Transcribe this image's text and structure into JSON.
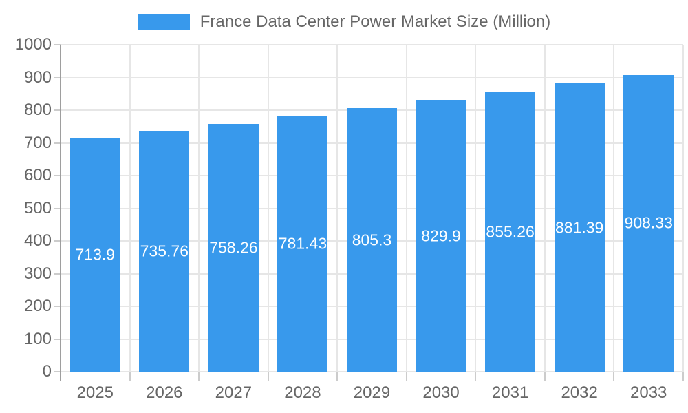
{
  "legend": {
    "label": "France Data Center Power Market Size (Million)"
  },
  "chart_data": {
    "type": "bar",
    "title": "France Data Center Power Market Size (Million)",
    "series_name": "France Data Center Power Market Size (Million)",
    "categories": [
      "2025",
      "2026",
      "2027",
      "2028",
      "2029",
      "2030",
      "2031",
      "2032",
      "2033"
    ],
    "values": [
      713.9,
      735.76,
      758.26,
      781.43,
      805.3,
      829.9,
      855.26,
      881.39,
      908.33
    ],
    "value_labels": [
      "713.9",
      "735.76",
      "758.26",
      "781.43",
      "805.3",
      "829.9",
      "855.26",
      "881.39",
      "908.33"
    ],
    "xlabel": "",
    "ylabel": "",
    "ylim": [
      0,
      1000
    ],
    "ytick_step": 100,
    "grid": true,
    "legend_position": "top",
    "colors": {
      "bar": "#3899ec",
      "grid": "#e6e6e6",
      "axis": "#9e9e9e",
      "tick": "#cccccc",
      "text": "#666666",
      "bar_label": "#ffffff",
      "background": "#ffffff"
    }
  }
}
